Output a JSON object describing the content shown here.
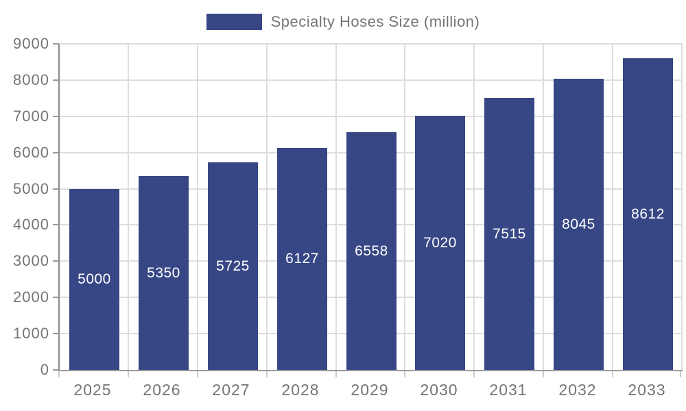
{
  "chart_data": {
    "type": "bar",
    "title": "Specialty Hoses Size (million)",
    "legend_label": "Specialty Hoses Size (million)",
    "legend_position": "top",
    "categories": [
      "2025",
      "2026",
      "2027",
      "2028",
      "2029",
      "2030",
      "2031",
      "2032",
      "2033"
    ],
    "values": [
      5000,
      5350,
      5725,
      6127,
      6558,
      7020,
      7515,
      8045,
      8612
    ],
    "xlabel": "",
    "ylabel": "",
    "ylim": [
      0,
      9000
    ],
    "ytick_step": 1000,
    "yticks": [
      0,
      1000,
      2000,
      3000,
      4000,
      5000,
      6000,
      7000,
      8000,
      9000
    ],
    "grid": true,
    "value_labels": "centered-inside-bars",
    "colors": {
      "bar": "#374785",
      "value_label": "#ffffff",
      "axis_text": "#757575",
      "grid": "#dddddd",
      "axis_line": "#9a9a9a"
    }
  }
}
